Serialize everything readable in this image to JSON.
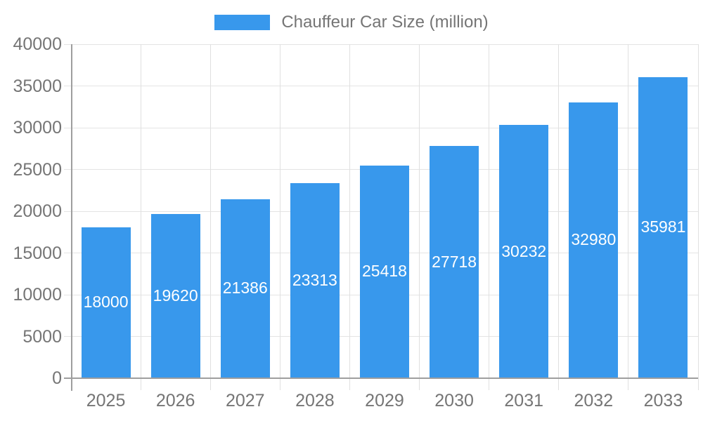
{
  "chart_data": {
    "type": "bar",
    "title": "Chauffeur Car Size (million)",
    "legend": [
      "Chauffeur Car Size (million)"
    ],
    "legend_position": "top-center",
    "categories": [
      "2025",
      "2026",
      "2027",
      "2028",
      "2029",
      "2030",
      "2031",
      "2032",
      "2033"
    ],
    "series": [
      {
        "name": "Chauffeur Car Size (million)",
        "values": [
          18000,
          19620,
          21386,
          23313,
          25418,
          27718,
          30232,
          32980,
          35981
        ]
      }
    ],
    "bar_value_labels": [
      "18000",
      "19620",
      "21386",
      "23313",
      "25418",
      "27718",
      "30232",
      "32980",
      "35981"
    ],
    "xlabel": "",
    "ylabel": "",
    "ylim": [
      0,
      40000
    ],
    "ytick_step": 5000,
    "ytick_labels": [
      "0",
      "5000",
      "10000",
      "15000",
      "20000",
      "25000",
      "30000",
      "35000",
      "40000"
    ],
    "grid": true,
    "colors": {
      "bar": "#3898ec",
      "bar_label_text": "#ffffff",
      "axis_text": "#757575",
      "axis_line": "#9e9e9e",
      "gridline": "#e4e4e4",
      "background": "#ffffff"
    }
  }
}
